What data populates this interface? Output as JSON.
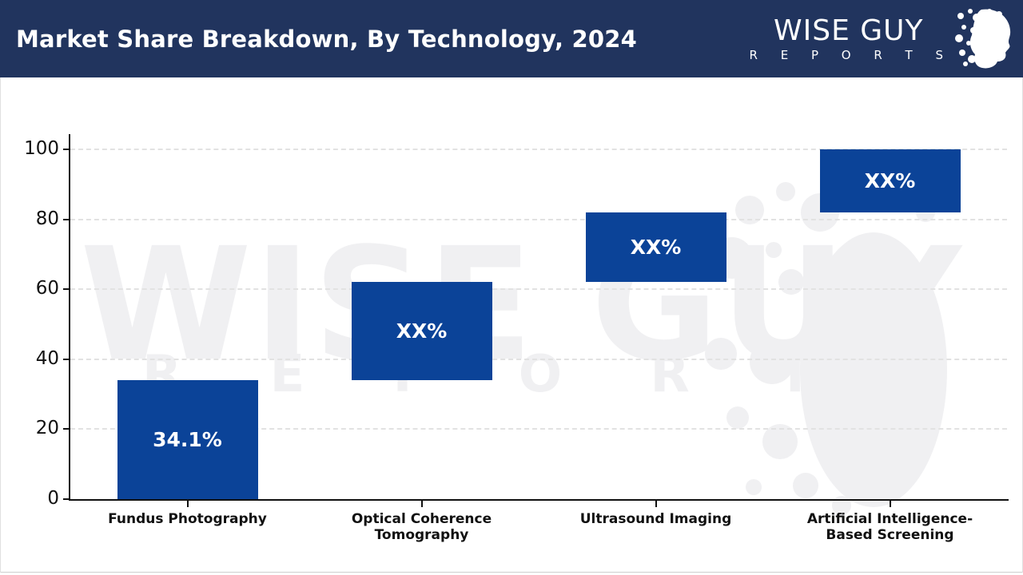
{
  "header": {
    "title": "Market Share Breakdown, By Technology, 2024",
    "logo": {
      "line1": "WISE GUY",
      "line2": "R E P O R T S"
    }
  },
  "watermark": {
    "line1": "WISE GUY",
    "line2": "R E P O R T S"
  },
  "colors": {
    "header_bg": "#21345e",
    "bar": "#0b4398",
    "bar_label": "#ffffff",
    "grid": "#e2e2e2",
    "axis": "#111111",
    "watermark": "#f0f0f2"
  },
  "chart_data": {
    "type": "bar",
    "subtype": "floating-waterfall",
    "title": "Market Share Breakdown, By Technology, 2024",
    "categories": [
      "Fundus Photography",
      "Optical Coherence Tomography",
      "Ultrasound Imaging",
      "Artificial Intelligence-Based Screening"
    ],
    "segments": [
      {
        "category": "Fundus Photography",
        "start": 0,
        "end": 34.1,
        "label": "34.1%"
      },
      {
        "category": "Optical Coherence Tomography",
        "start": 34.1,
        "end": 62,
        "label": "XX%"
      },
      {
        "category": "Ultrasound Imaging",
        "start": 62,
        "end": 82,
        "label": "XX%"
      },
      {
        "category": "Artificial Intelligence-Based Screening",
        "start": 82,
        "end": 100,
        "label": "XX%"
      }
    ],
    "yticks": [
      0,
      20,
      40,
      60,
      80,
      100
    ],
    "ylim": [
      0,
      104
    ],
    "xlabel": "",
    "ylabel": "",
    "grid": "horizontal-dashed",
    "legend": "none"
  }
}
